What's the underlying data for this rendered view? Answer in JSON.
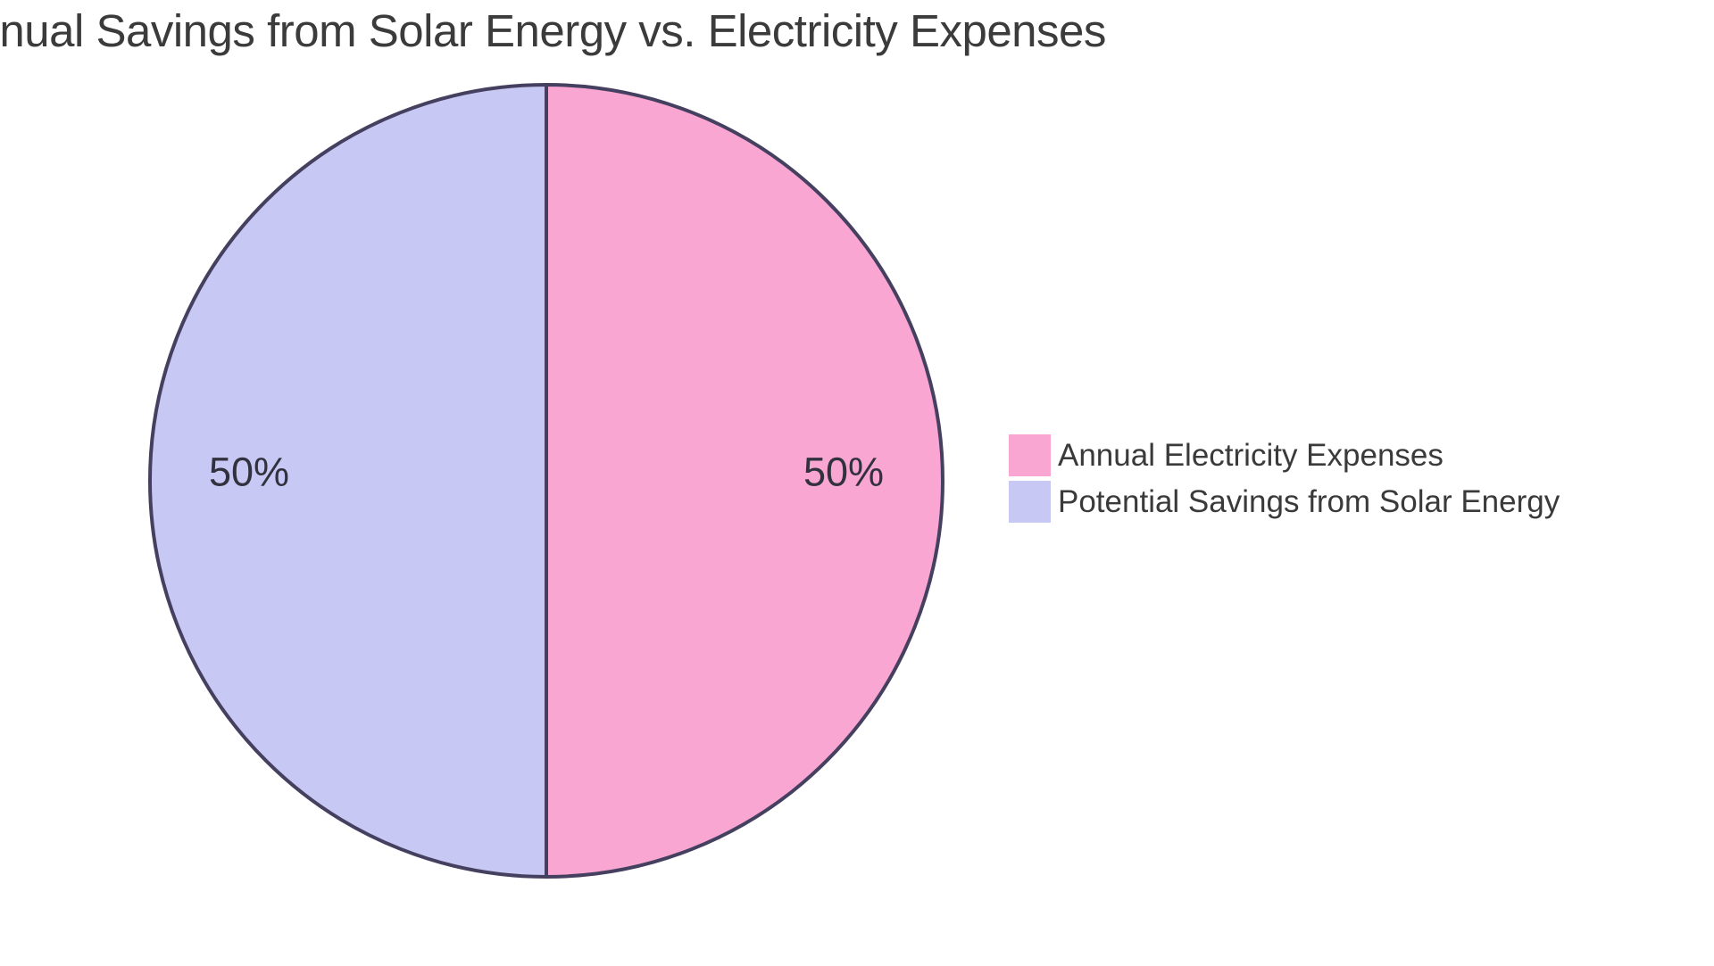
{
  "chart_data": {
    "type": "pie",
    "title": "Annual Savings from Solar Energy vs. Electricity Expenses",
    "title_clipped_at_left_edge": true,
    "labels": [
      "Annual Electricity Expenses",
      "Potential Savings from Solar Energy"
    ],
    "values": [
      50,
      50
    ],
    "value_labels": [
      "50%",
      "50%"
    ],
    "colors": [
      "#f9a6d2",
      "#c7c9f4"
    ],
    "slice_border_color": "#45405f",
    "slice_label_color": "#32323e",
    "title_color": "#3b3b3b",
    "legend_text_color": "#3a3a3a",
    "background": "#ffffff",
    "start_angle_deg": 0,
    "direction": "clockwise",
    "legend_position": "right",
    "labels_inside": true
  }
}
